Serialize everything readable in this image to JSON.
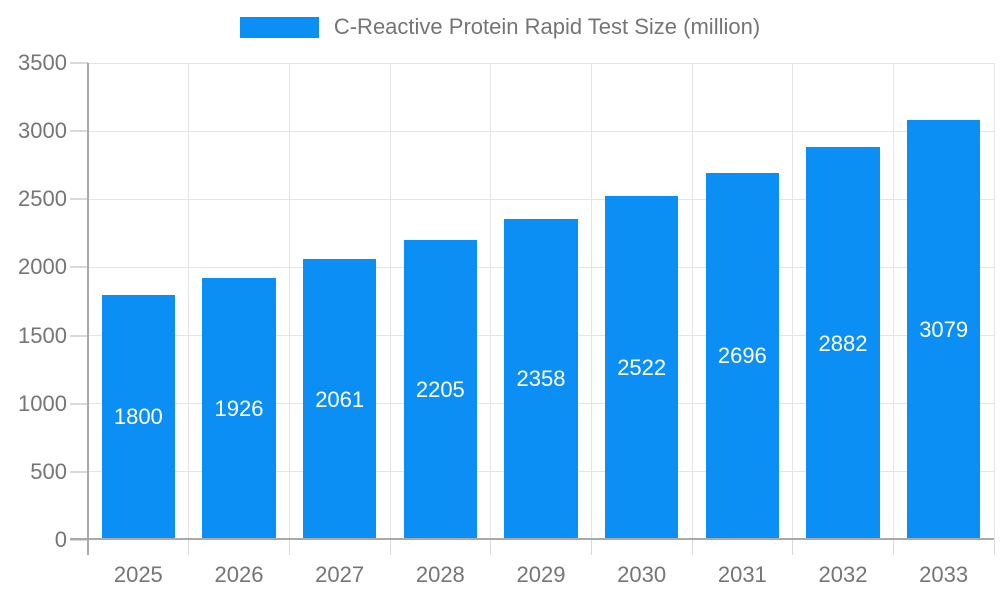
{
  "chart_data": {
    "type": "bar",
    "title": "C-Reactive Protein Rapid Test Size (million)",
    "legend": {
      "label": "C-Reactive Protein Rapid Test Size (million)",
      "position": "top"
    },
    "categories": [
      "2025",
      "2026",
      "2027",
      "2028",
      "2029",
      "2030",
      "2031",
      "2032",
      "2033"
    ],
    "values": [
      1800,
      1926,
      2061,
      2205,
      2358,
      2522,
      2696,
      2882,
      3079
    ],
    "xlabel": "",
    "ylabel": "",
    "ylim": [
      0,
      3500
    ],
    "ytick_step": 500,
    "yticks": [
      0,
      500,
      1000,
      1500,
      2000,
      2500,
      3000,
      3500
    ],
    "grid": true,
    "value_labels": "inside-center",
    "colors": {
      "bar": "#0b8ff5",
      "value_label": "#ffffff",
      "axis_text": "#757575",
      "grid": "#e4e4e4",
      "tick": "#d9d9d9",
      "axis_line": "#a9a9a9",
      "background": "#ffffff"
    }
  }
}
